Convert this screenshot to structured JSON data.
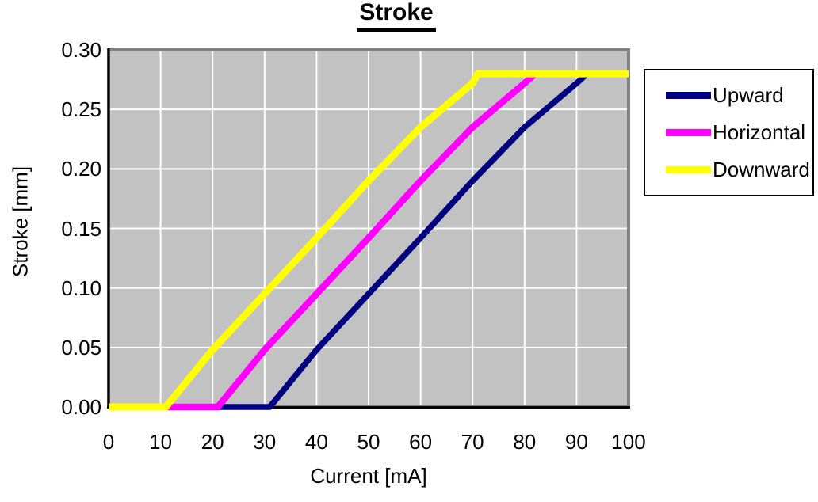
{
  "chart_data": {
    "type": "line",
    "title": "Stroke",
    "xlabel": "Current [mA]",
    "ylabel": "Stroke [mm]",
    "xlim": [
      0,
      100
    ],
    "ylim": [
      0,
      0.3
    ],
    "x_ticks": [
      0,
      10,
      20,
      30,
      40,
      50,
      60,
      70,
      80,
      90,
      100
    ],
    "x_tick_labels": [
      "0",
      "10",
      "20",
      "30",
      "40",
      "50",
      "60",
      "70",
      "80",
      "90",
      "100"
    ],
    "y_ticks": [
      0,
      0.05,
      0.1,
      0.15,
      0.2,
      0.25,
      0.3
    ],
    "y_tick_labels": [
      "0.00",
      "0.05",
      "0.10",
      "0.15",
      "0.20",
      "0.25",
      "0.30"
    ],
    "grid": true,
    "legend_position": "right",
    "plateau_value": 0.28,
    "colors": {
      "plot_bg": "#c2c2c2",
      "grid": "#ffffff",
      "plot_border": "#808080",
      "axis": "#000000",
      "legend_bg": "#ffffff",
      "legend_border": "#000000",
      "text": "#000000"
    },
    "series": [
      {
        "name": "Upward",
        "color": "#000080",
        "stroke_width": 7.5,
        "points": [
          [
            0,
            0
          ],
          [
            31,
            0
          ],
          [
            40,
            0.048
          ],
          [
            50,
            0.095
          ],
          [
            60,
            0.142
          ],
          [
            70,
            0.19
          ],
          [
            80,
            0.235
          ],
          [
            90,
            0.272
          ],
          [
            92,
            0.28
          ],
          [
            100,
            0.28
          ]
        ]
      },
      {
        "name": "Horizontal",
        "color": "#ff00ff",
        "stroke_width": 8.5,
        "points": [
          [
            0,
            0
          ],
          [
            21,
            0
          ],
          [
            30,
            0.048
          ],
          [
            40,
            0.095
          ],
          [
            50,
            0.142
          ],
          [
            60,
            0.19
          ],
          [
            70,
            0.235
          ],
          [
            80,
            0.272
          ],
          [
            82,
            0.28
          ],
          [
            100,
            0.28
          ]
        ]
      },
      {
        "name": "Downward",
        "color": "#ffff00",
        "stroke_width": 9,
        "points": [
          [
            0,
            0
          ],
          [
            11,
            0
          ],
          [
            20,
            0.048
          ],
          [
            30,
            0.095
          ],
          [
            40,
            0.142
          ],
          [
            50,
            0.19
          ],
          [
            60,
            0.235
          ],
          [
            70,
            0.272
          ],
          [
            71,
            0.28
          ],
          [
            100,
            0.28
          ]
        ]
      }
    ]
  }
}
